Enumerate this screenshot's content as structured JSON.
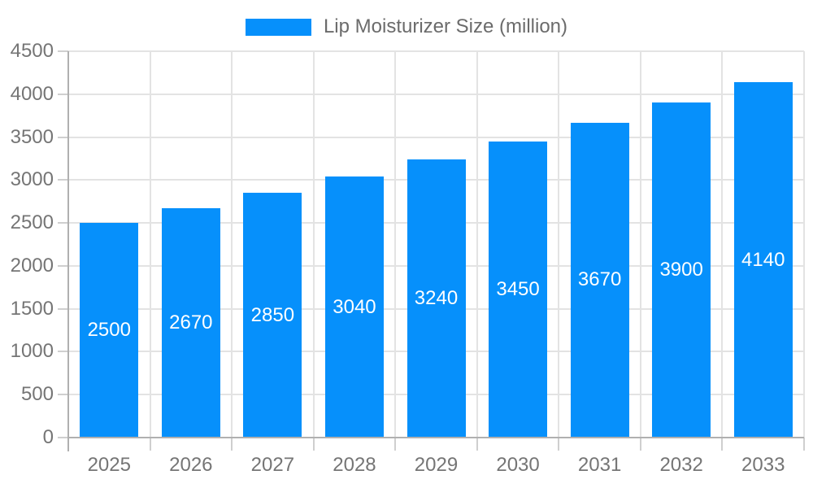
{
  "chart_data": {
    "type": "bar",
    "title": "Lip Moisturizer Size (million)",
    "categories": [
      "2025",
      "2026",
      "2027",
      "2028",
      "2029",
      "2030",
      "2031",
      "2032",
      "2033"
    ],
    "values": [
      2500,
      2670,
      2850,
      3040,
      3240,
      3450,
      3670,
      3900,
      4140
    ],
    "series": [
      {
        "name": "Lip Moisturizer Size (million)",
        "values": [
          2500,
          2670,
          2850,
          3040,
          3240,
          3450,
          3670,
          3900,
          4140
        ]
      }
    ],
    "value_labels": [
      "2500",
      "2670",
      "2850",
      "3040",
      "3240",
      "3450",
      "3670",
      "3900",
      "4140"
    ],
    "xlabel": "",
    "ylabel": "",
    "ylim": [
      0,
      4500
    ],
    "ytick_step": 500,
    "yticks": [
      0,
      500,
      1000,
      1500,
      2000,
      2500,
      3000,
      3500,
      4000,
      4500
    ],
    "grid": "both",
    "legend_position": "top-center"
  },
  "colors": {
    "bar": "#0690FB",
    "grid": "#e3e3e3",
    "axis": "#b0b0b0",
    "tick": "#cfcfcf",
    "axis_label": "#757575",
    "legend_text": "#6b6b6b",
    "value_label": "#ffffff",
    "background": "#ffffff"
  }
}
